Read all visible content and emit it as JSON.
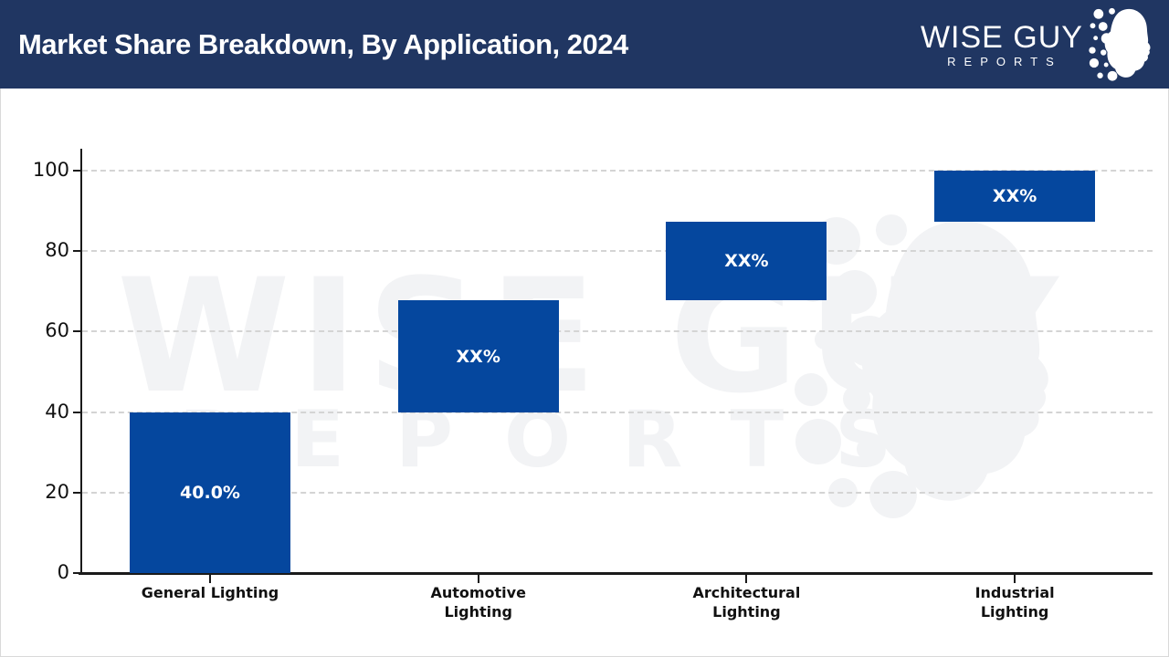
{
  "header": {
    "title": "Market Share Breakdown, By Application, 2024",
    "bg_color": "#203662",
    "logo": {
      "line1": "WISE GUY",
      "line2": "REPORTS"
    }
  },
  "watermark": {
    "line1": "WISE GUY",
    "line2": "REPORTS"
  },
  "chart_data": {
    "type": "bar",
    "subtype": "waterfall-cumulative",
    "title": "Market Share Breakdown, By Application, 2024",
    "categories": [
      "General Lighting",
      "Automotive\nLighting",
      "Architectural\nLighting",
      "Industrial\nLighting"
    ],
    "segments": [
      {
        "category": "General Lighting",
        "start": 0,
        "end": 40,
        "value_estimated": 40.0,
        "label": "40.0%"
      },
      {
        "category": "Automotive Lighting",
        "start": 40,
        "end": 67.7,
        "value_estimated": 27.7,
        "label": "XX%"
      },
      {
        "category": "Architectural Lighting",
        "start": 67.7,
        "end": 87.3,
        "value_estimated": 19.6,
        "label": "XX%"
      },
      {
        "category": "Industrial Lighting",
        "start": 87.3,
        "end": 100,
        "value_estimated": 12.7,
        "label": "XX%"
      }
    ],
    "yticks": [
      0,
      20,
      40,
      60,
      80,
      100
    ],
    "ylim": [
      0,
      105.5
    ],
    "xlabel": "",
    "ylabel": "",
    "grid": "horizontal-dashed",
    "legend": "none",
    "bar_color": "#05479e",
    "bar_label_color": "#ffffff",
    "axis_color": "#1a1a1a",
    "gridline_color": "#d4d4d4",
    "watermark_color": "#f2f3f5"
  }
}
